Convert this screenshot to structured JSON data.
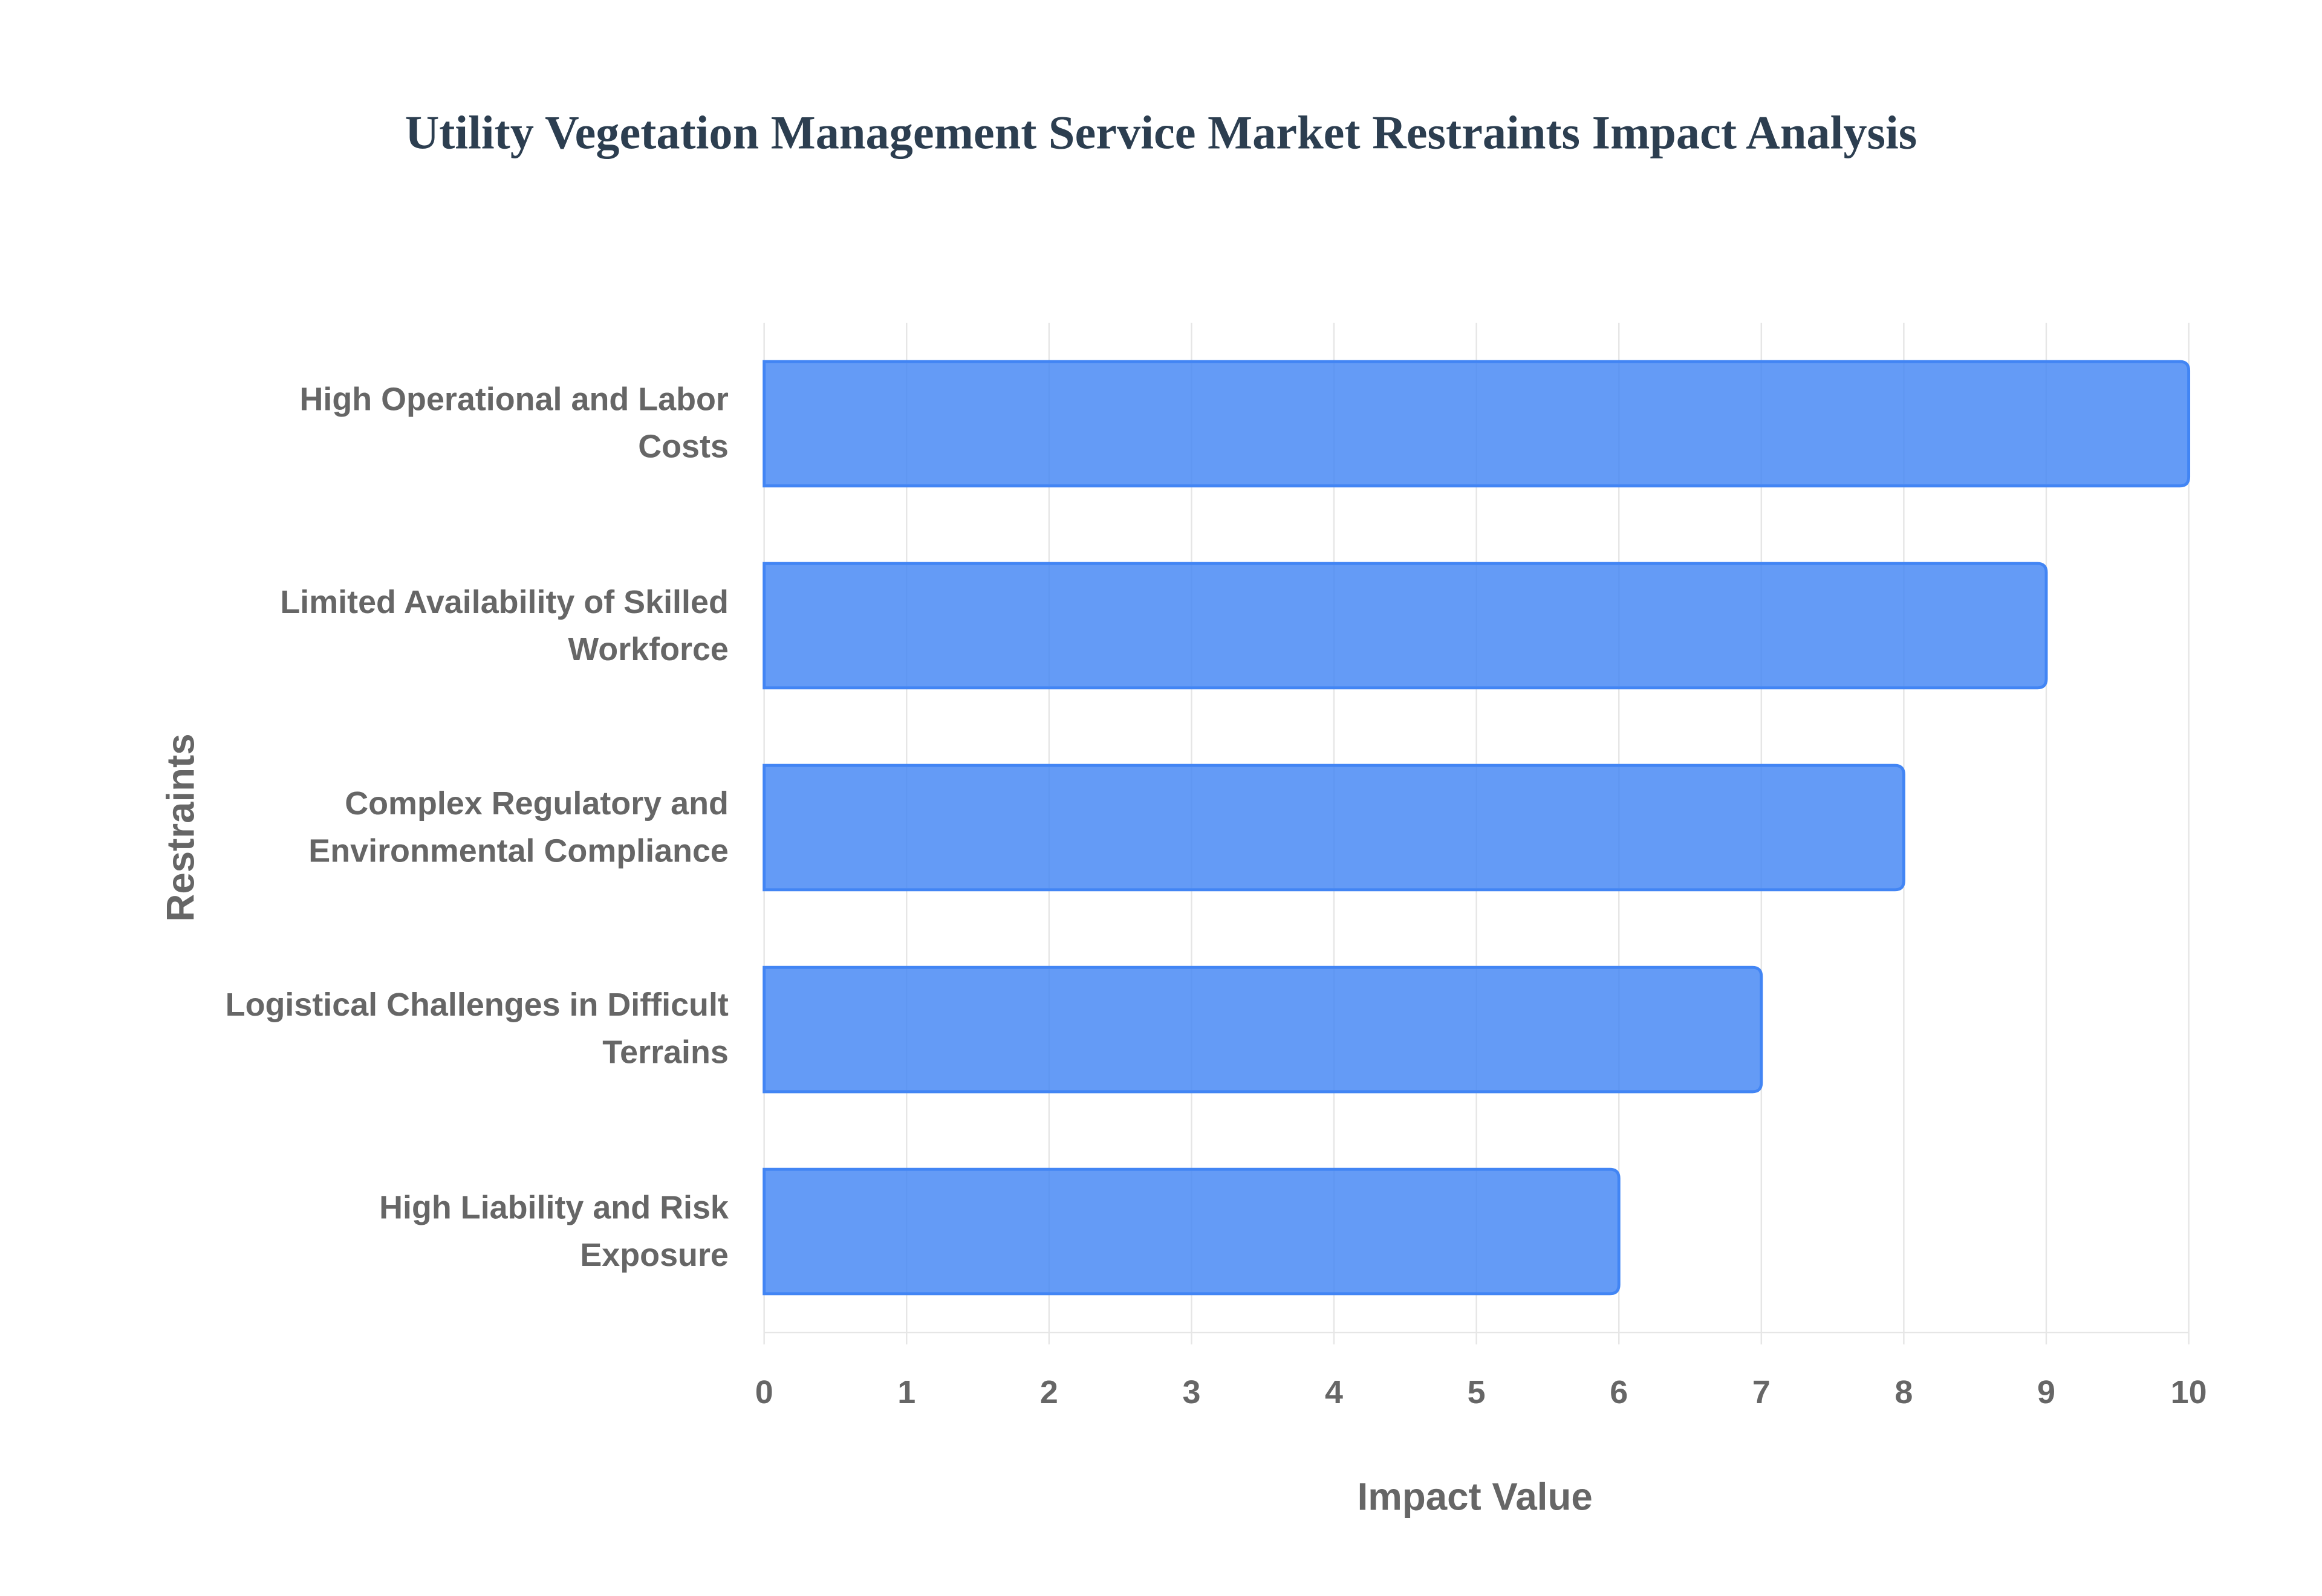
{
  "chart_data": {
    "type": "bar",
    "orientation": "horizontal",
    "title": "Utility Vegetation Management Service Market Restraints Impact Analysis",
    "x_label": "Impact Value",
    "y_label": "Restraints",
    "categories": [
      "High Operational and Labor Costs",
      "Limited Availability of Skilled Workforce",
      "Complex Regulatory and Environmental Compliance",
      "Logistical Challenges in Difficult Terrains",
      "High Liability and Risk Exposure"
    ],
    "values": [
      10,
      9,
      8,
      7,
      6
    ],
    "color": "#4285f4",
    "xlim": [
      0,
      10
    ],
    "xticks": [
      0,
      1,
      2,
      3,
      4,
      5,
      6,
      7,
      8,
      9,
      10
    ],
    "grid": true
  }
}
